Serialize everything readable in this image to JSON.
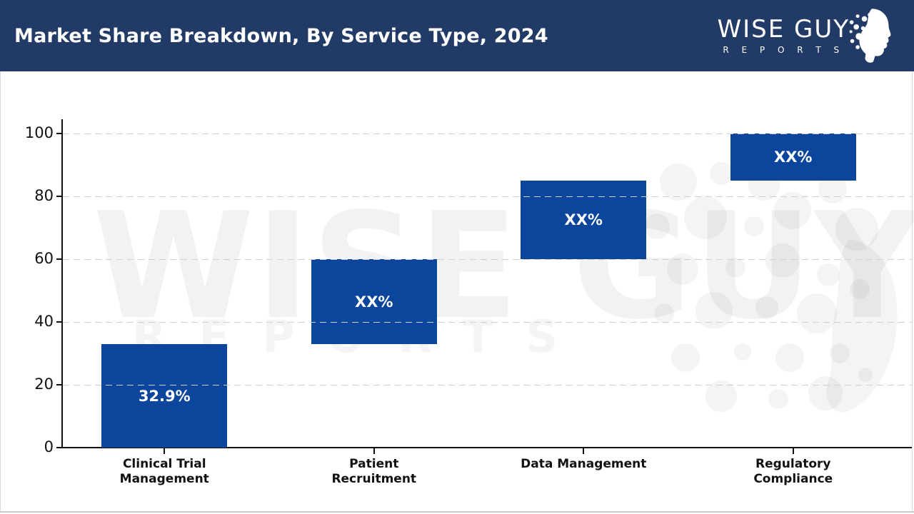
{
  "header": {
    "title": "Market Share Breakdown, By Service Type, 2024",
    "logo": {
      "wordmark": "WISE GUY",
      "tagline": "R E P O R T S"
    }
  },
  "watermark": {
    "wordmark": "WISE GUY",
    "tagline": "REPORTS"
  },
  "chart_data": {
    "type": "bar",
    "subtype": "waterfall-breakdown",
    "title": "Market Share Breakdown, By Service Type, 2024",
    "categories": [
      "Clinical Trial\nManagement",
      "Patient\nRecruitment",
      "Data Management",
      "Regulatory\nCompliance"
    ],
    "segments": [
      {
        "category": "Clinical Trial Management",
        "start": 0,
        "end": 32.9,
        "label": "32.9%"
      },
      {
        "category": "Patient Recruitment",
        "start": 32.9,
        "end": 60,
        "label": "XX%"
      },
      {
        "category": "Data Management",
        "start": 60,
        "end": 85,
        "label": "XX%"
      },
      {
        "category": "Regulatory Compliance",
        "start": 85,
        "end": 100,
        "label": "XX%"
      }
    ],
    "ylim": [
      0,
      100
    ],
    "yticks": [
      0,
      20,
      40,
      60,
      80,
      100
    ],
    "grid": "horizontal-dashed",
    "legend": "none",
    "colors": {
      "bar": "#0b459c",
      "bar_label": "#ffffff",
      "grid": "#cfcfcf",
      "axis": "#111111",
      "header_bg": "#223a66",
      "header_text": "#ffffff"
    }
  }
}
